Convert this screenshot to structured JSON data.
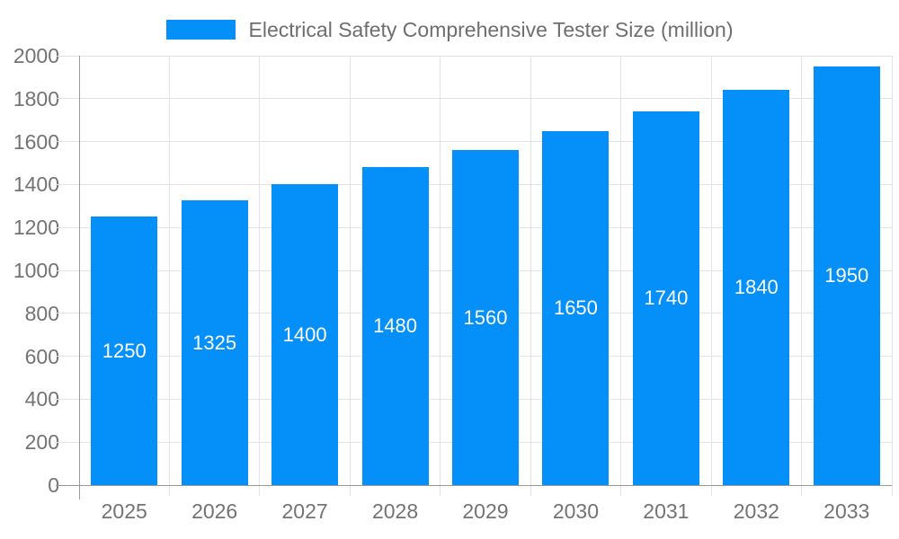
{
  "legend": {
    "label": "Electrical Safety Comprehensive Tester Size (million)"
  },
  "chart_data": {
    "type": "bar",
    "title": "Electrical Safety Comprehensive Tester Size (million)",
    "categories": [
      "2025",
      "2026",
      "2027",
      "2028",
      "2029",
      "2030",
      "2031",
      "2032",
      "2033"
    ],
    "values": [
      1250,
      1325,
      1400,
      1480,
      1560,
      1650,
      1740,
      1840,
      1950
    ],
    "xlabel": "",
    "ylabel": "",
    "ylim": [
      0,
      2000
    ],
    "ytick_step": 200,
    "yticks": [
      0,
      200,
      400,
      600,
      800,
      1000,
      1200,
      1400,
      1600,
      1800,
      2000
    ],
    "grid": true,
    "legend_position": "top-center",
    "value_labels": "centered-inside-bars-white",
    "colors": {
      "bar": "#0590f9",
      "value_label": "#ffffff",
      "axis_label": "#737373",
      "legend_text": "#6e6e6e",
      "gridline": "#e3e3e3",
      "axis_line": "#9a9a9a",
      "background": "#ffffff"
    }
  }
}
